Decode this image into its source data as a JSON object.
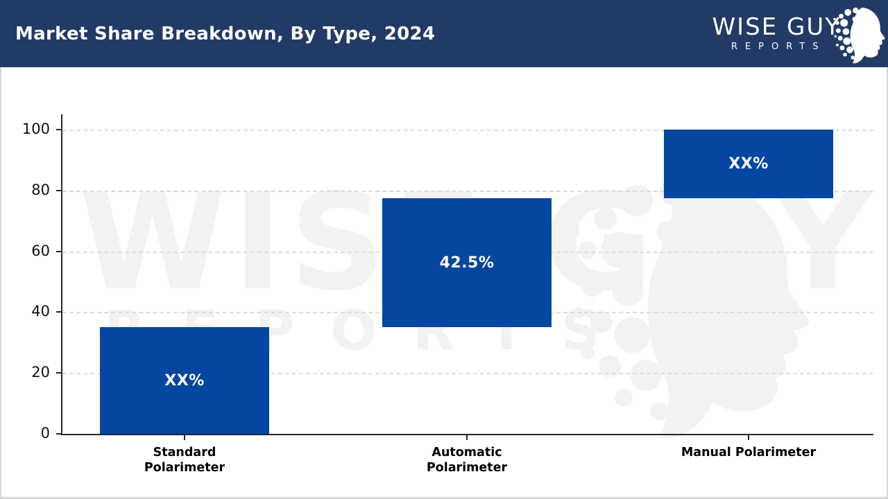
{
  "header": {
    "title": "Market Share Breakdown, By Type, 2024",
    "bg_color": "#213A66",
    "logo": {
      "line1": "WISE GUY",
      "line2": "REPORTS"
    }
  },
  "watermark": {
    "line1": "WISE GUY",
    "line2": "REPORTS"
  },
  "chart_data": {
    "type": "bar",
    "subtype": "stacked-waterfall",
    "title": "Market Share Breakdown, By Type, 2024",
    "categories": [
      "Standard Polarimeter",
      "Automatic Polarimeter",
      "Manual Polarimeter"
    ],
    "tick_labels": [
      "Standard\nPolarimeter",
      "Automatic\nPolarimeter",
      "Manual Polarimeter"
    ],
    "series": [
      {
        "name": "Market Share %",
        "segments": [
          {
            "category": "Standard Polarimeter",
            "start": 0,
            "end": 35,
            "label": "XX%"
          },
          {
            "category": "Automatic Polarimeter",
            "start": 35,
            "end": 77.5,
            "label": "42.5%"
          },
          {
            "category": "Manual Polarimeter",
            "start": 77.5,
            "end": 100,
            "label": "XX%"
          }
        ]
      }
    ],
    "yticks": [
      0,
      20,
      40,
      60,
      80,
      100
    ],
    "ylim": [
      0,
      105
    ],
    "xlabel": "",
    "ylabel": "",
    "bar_color": "#0546A0",
    "label_color": "#ffffff",
    "grid": "horizontal-dashed",
    "legend": "none"
  }
}
